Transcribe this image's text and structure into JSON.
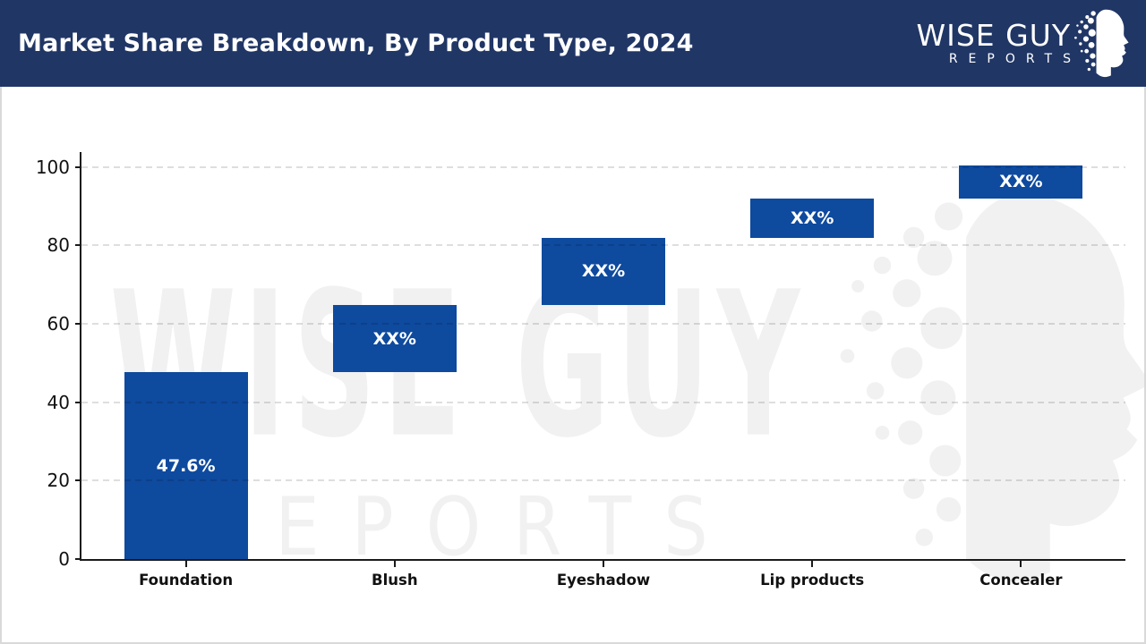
{
  "header": {
    "title": "Market Share Breakdown, By Product Type, 2024",
    "logo": {
      "line1": "WISE GUY",
      "line2": "REPORTS"
    }
  },
  "watermark": {
    "line1": "WISE GUY",
    "line2": "REPORTS"
  },
  "colors": {
    "header_bg": "#203665",
    "header_text": "#ffffff",
    "bar": "#0e4a9e",
    "bar_label": "#ffffff",
    "axis": "#1a1a1a",
    "gridline": "rgba(0,0,0,0.13)",
    "watermark": "#f1f1f1"
  },
  "chart_data": {
    "type": "bar",
    "subtype": "waterfall",
    "title": "Market Share Breakdown, By Product Type, 2024",
    "categories": [
      "Foundation",
      "Blush",
      "Eyeshadow",
      "Lip products",
      "Concealer"
    ],
    "segments": [
      {
        "category": "Foundation",
        "start": 0,
        "end": 47.6,
        "label": "47.6%"
      },
      {
        "category": "Blush",
        "start": 47.6,
        "end": 64.7,
        "label": "XX%"
      },
      {
        "category": "Eyeshadow",
        "start": 64.7,
        "end": 82.0,
        "label": "XX%"
      },
      {
        "category": "Lip products",
        "start": 82.0,
        "end": 92.0,
        "label": "XX%"
      },
      {
        "category": "Concealer",
        "start": 92.0,
        "end": 100.4,
        "label": "XX%"
      }
    ],
    "xlabel": "",
    "ylabel": "",
    "yticks": [
      0,
      20,
      40,
      60,
      80,
      100
    ],
    "ylim": [
      0,
      103.8
    ],
    "grid": "horizontal-dashed",
    "legend": "none"
  }
}
